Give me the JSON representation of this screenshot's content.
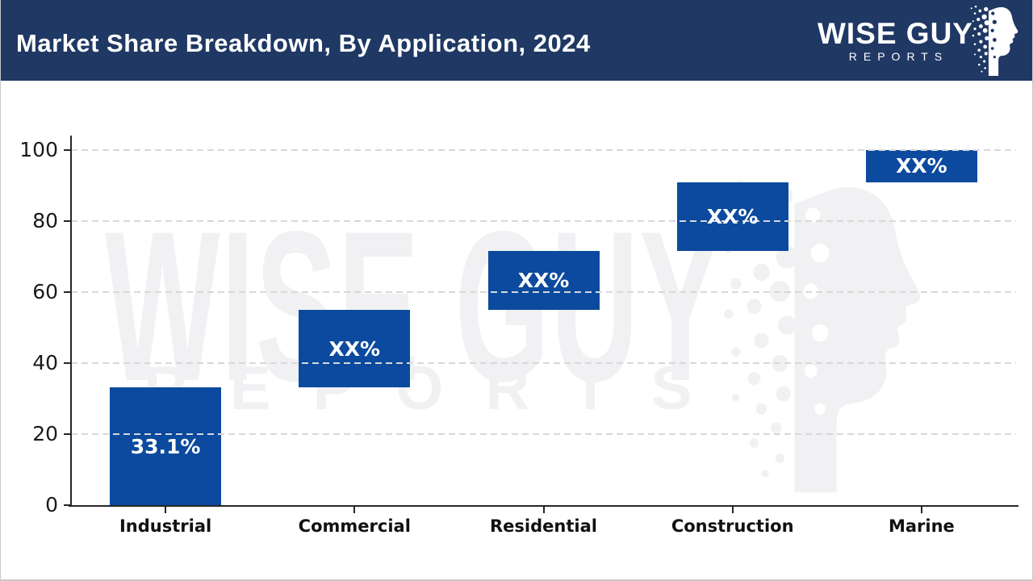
{
  "header": {
    "title": "Market Share Breakdown, By Application, 2024",
    "logo": {
      "name": "WISE GUY",
      "sub": "REPORTS",
      "face_icon": "dotted-head-profile"
    }
  },
  "watermark": {
    "line1": "WISE GUY",
    "line2": "REPORTS",
    "face_icon": "dotted-head-profile"
  },
  "colors": {
    "header_bg": "#1f3864",
    "bar_blue": "#0b4a9e",
    "axis": "#262626",
    "gridline": "#d8d8d8",
    "watermark": "#f1f1f4",
    "bar_label_text": "#ffffff"
  },
  "chart_data": {
    "type": "bar",
    "subtype": "waterfall",
    "title": "Market Share Breakdown, By Application, 2024",
    "categories": [
      "Industrial",
      "Commercial",
      "Residential",
      "Construction",
      "Marine"
    ],
    "segments": [
      {
        "category": "Industrial",
        "start": 0,
        "end": 33.1,
        "label": "33.1%"
      },
      {
        "category": "Commercial",
        "start": 33.1,
        "end": 55,
        "label": "XX%"
      },
      {
        "category": "Residential",
        "start": 55,
        "end": 71.5,
        "label": "XX%"
      },
      {
        "category": "Construction",
        "start": 71.5,
        "end": 91,
        "label": "XX%"
      },
      {
        "category": "Marine",
        "start": 91,
        "end": 100,
        "label": "XX%"
      }
    ],
    "xlabel": "",
    "ylabel": "",
    "ylim": [
      0,
      100
    ],
    "yticks": [
      0,
      20,
      40,
      60,
      80,
      100
    ],
    "grid": "horizontal dashed, drawn over bars",
    "legend": "none",
    "bar_color": "#0b4a9e"
  }
}
